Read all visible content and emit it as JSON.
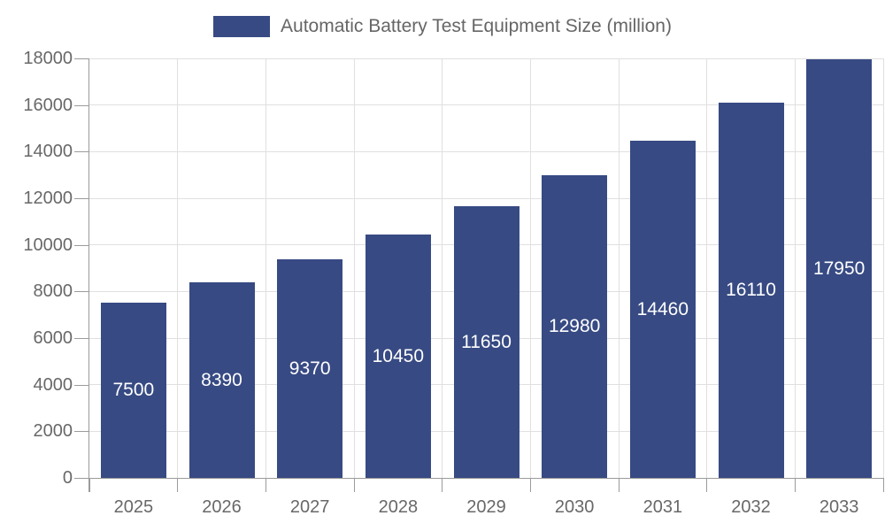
{
  "legend": {
    "label": "Automatic Battery Test Equipment Size (million)"
  },
  "colors": {
    "bar": "#374a83",
    "axis_line": "#9b9b9b",
    "gridline": "#e0e0e0",
    "axis_text": "#686868",
    "legend_text": "#666666",
    "bar_label_text": "#ffffff"
  },
  "chart_data": {
    "type": "bar",
    "title": "Automatic Battery Test Equipment Size (million)",
    "categories": [
      "2025",
      "2026",
      "2027",
      "2028",
      "2029",
      "2030",
      "2031",
      "2032",
      "2033"
    ],
    "values": [
      7500,
      8390,
      9370,
      10450,
      11650,
      12980,
      14460,
      16110,
      17950
    ],
    "value_labels": [
      "7500",
      "8390",
      "9370",
      "10450",
      "11650",
      "12980",
      "14460",
      "16110",
      "17950"
    ],
    "xlabel": "",
    "ylabel": "",
    "ylim": [
      0,
      18000
    ],
    "yticks": [
      0,
      2000,
      4000,
      6000,
      8000,
      10000,
      12000,
      14000,
      16000,
      18000
    ],
    "ytick_labels": [
      "0",
      "2000",
      "4000",
      "6000",
      "8000",
      "10000",
      "12000",
      "14000",
      "16000",
      "18000"
    ],
    "grid": true,
    "legend_position": "top-center",
    "bar_value_label_position": "inside-center"
  }
}
